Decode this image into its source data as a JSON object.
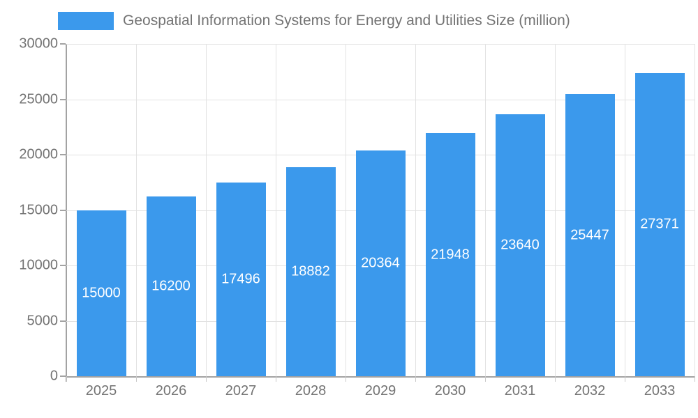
{
  "legend": {
    "label": "Geospatial Information Systems for Energy and Utilities Size (million)"
  },
  "chart_data": {
    "type": "bar",
    "title": "Geospatial Information Systems for Energy and Utilities Size (million)",
    "categories": [
      "2025",
      "2026",
      "2027",
      "2028",
      "2029",
      "2030",
      "2031",
      "2032",
      "2033"
    ],
    "values": [
      15000,
      16200,
      17496,
      18882,
      20364,
      21948,
      23640,
      25447,
      27371
    ],
    "xlabel": "",
    "ylabel": "",
    "ylim": [
      0,
      30000
    ],
    "yticks": [
      0,
      5000,
      10000,
      15000,
      20000,
      25000,
      30000
    ],
    "grid": true,
    "legend_position": "top-left",
    "bar_color": "#3B99EC",
    "bar_label_color": "#FFFFFF",
    "gridline_color": "#E2E2E2",
    "axis_color": "#A3A3A3",
    "text_color": "#737373",
    "background_color": "#FFFFFF"
  }
}
